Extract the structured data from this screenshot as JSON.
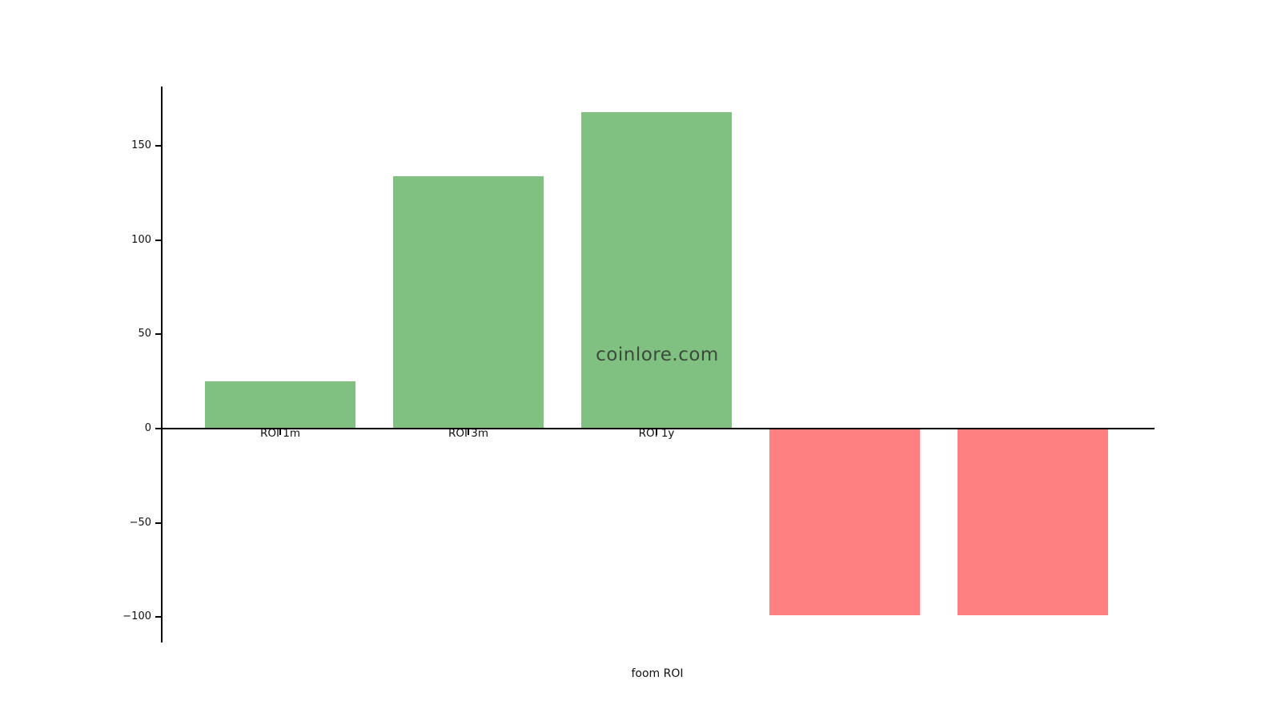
{
  "chart_data": {
    "type": "bar",
    "title": "",
    "xlabel": "foom ROI",
    "ylabel": "",
    "categories": [
      "ROI 1m",
      "ROI 3m",
      "ROI 1y",
      "",
      ""
    ],
    "values": [
      25,
      134,
      168,
      -99,
      -99
    ],
    "series_note": "single series; green = positive ROI, red = negative ROI; tick labels of the two negative bars are hidden behind the bars",
    "yticks": [
      {
        "value": -100,
        "label": "−100"
      },
      {
        "value": -50,
        "label": "−50"
      },
      {
        "value": 0,
        "label": "0"
      },
      {
        "value": 50,
        "label": "50"
      },
      {
        "value": 100,
        "label": "100"
      },
      {
        "value": 150,
        "label": "150"
      }
    ],
    "ylim": [
      -113,
      182
    ],
    "grid": false,
    "legend": null,
    "colors": {
      "positive": "#80c080",
      "negative": "#ff8080",
      "axis": "#000000",
      "text": "#111111",
      "watermark_text": "#3c4a3c",
      "background": "#ffffff"
    },
    "watermark": "coinlore.com"
  }
}
